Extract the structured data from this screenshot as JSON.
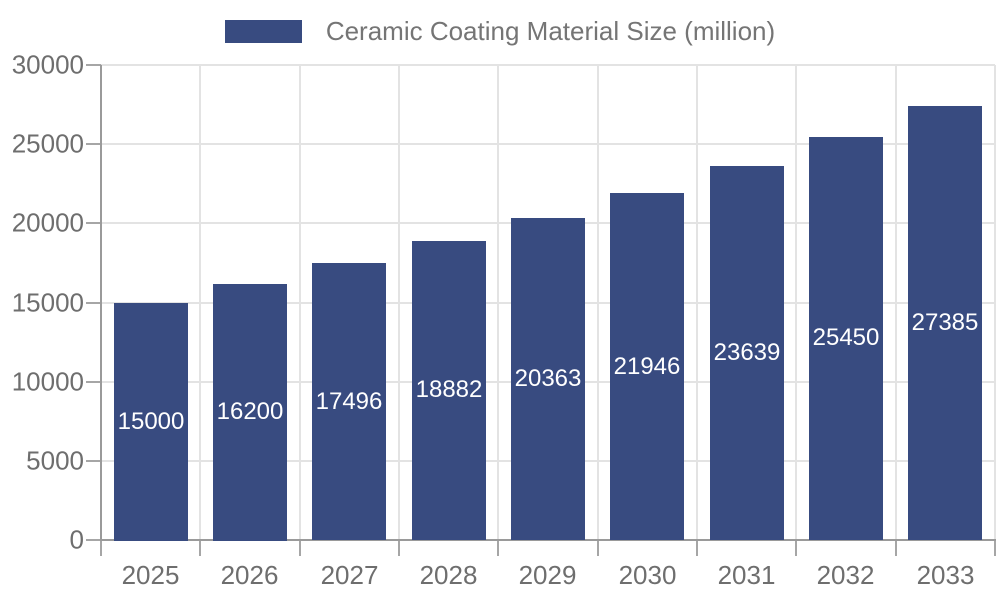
{
  "chart_data": {
    "type": "bar",
    "title": "Ceramic Coating Material Size (million)",
    "categories": [
      "2025",
      "2026",
      "2027",
      "2028",
      "2029",
      "2030",
      "2031",
      "2032",
      "2033"
    ],
    "values": [
      15000,
      16200,
      17496,
      18882,
      20363,
      21946,
      23639,
      25450,
      27385
    ],
    "value_labels": [
      "15000",
      "16200",
      "17496",
      "18882",
      "20363",
      "21946",
      "23639",
      "25450",
      "27385"
    ],
    "xlabel": "",
    "ylabel": "",
    "ylim": [
      0,
      30000
    ],
    "y_ticks": [
      0,
      5000,
      10000,
      15000,
      20000,
      25000,
      30000
    ],
    "y_tick_labels": [
      "0",
      "5000",
      "10000",
      "15000",
      "20000",
      "25000",
      "30000"
    ],
    "grid": true,
    "legend_position": "top",
    "colors": {
      "bar_fill": "#384B80",
      "bar_value_text": "#ffffff",
      "axis_line": "#9a9a9a",
      "grid_line": "#e3e3e3",
      "tick_text": "#6e6e6e",
      "legend_text": "#757575",
      "background": "#ffffff"
    }
  }
}
